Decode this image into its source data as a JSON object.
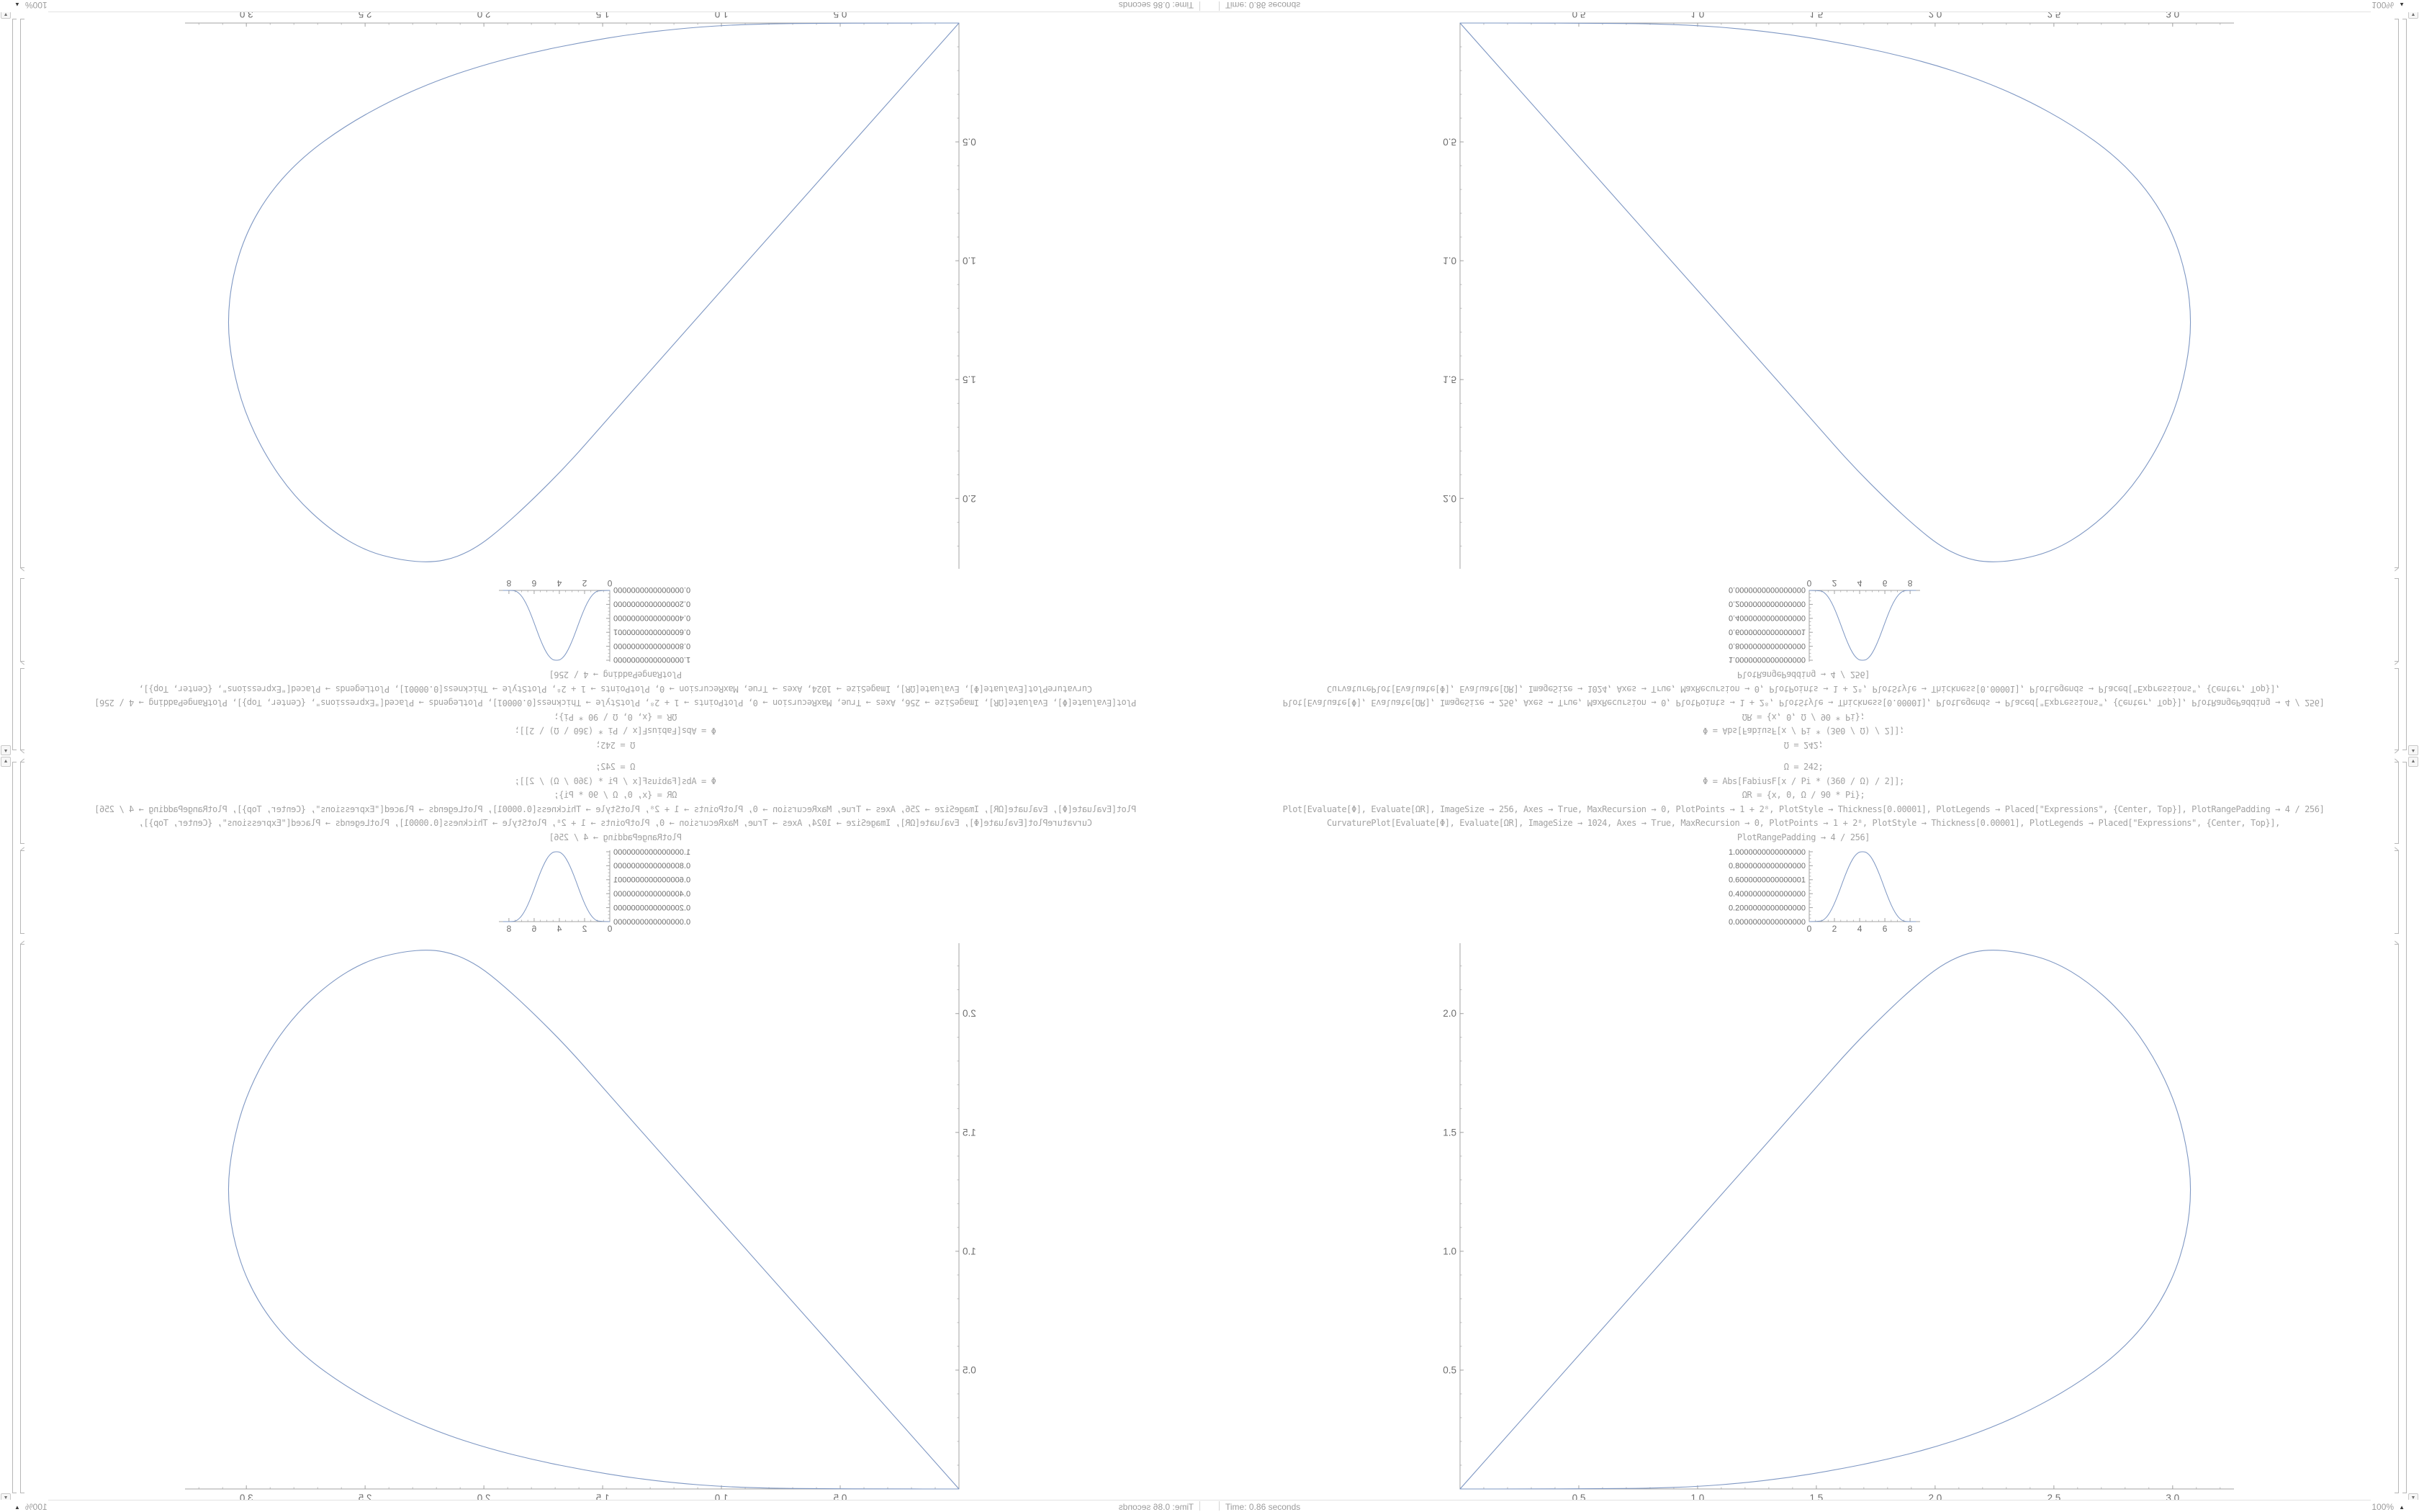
{
  "app": {
    "status": {
      "time": "Time: 0.86 seconds",
      "zoom_level": "100%"
    },
    "icons": {
      "scroll_up": "▲",
      "scroll_down": "▼",
      "zoom_menu": "▲"
    },
    "colors": {
      "curve": "#7e97c3",
      "axis": "#a3a3a3",
      "tick_label": "#6e6e6e",
      "code_text": "#a2a2a2",
      "bracket": "#b6b6b6"
    }
  },
  "code_cell": {
    "lines": [
      "Ω = 242;",
      "Φ = Abs[FabiusF[x / Pi * (360 / Ω) / 2]];",
      "ΩR = {x, 0, Ω / 90 * Pi};",
      "Plot[Evaluate[Φ], Evaluate[ΩR], ImageSize → 256, Axes → True, MaxRecursion → 0, PlotPoints → 1 + 2⁸, PlotStyle → Thickness[0.00001], PlotLegends → Placed[\"Expressions\", {Center, Top}], PlotRangePadding → 4 / 256]",
      "CurvaturePlot[Evaluate[Φ], Evaluate[ΩR], ImageSize → 1024, Axes → True, MaxRecursion → 0, PlotPoints → 1 + 2⁸, PlotStyle → Thickness[0.00001], PlotLegends → Placed[\"Expressions\", {Center, Top}],",
      "PlotRangePadding → 4 / 256]"
    ]
  },
  "chart_data": [
    {
      "type": "line",
      "name": "fabius-bump-plot",
      "title": "",
      "xlabel": "",
      "ylabel": "",
      "xlim": [
        0,
        8.45
      ],
      "ylim": [
        0,
        1.0
      ],
      "x_ticks": [
        0,
        2,
        4,
        6,
        8
      ],
      "x_tick_labels": [
        "0",
        "2",
        "4",
        "6",
        "8"
      ],
      "y_ticks": [
        0,
        0.2,
        0.4,
        0.6,
        0.8,
        1.0
      ],
      "y_tick_labels": [
        "0.0000000000000000",
        "0.2000000000000000",
        "0.4000000000000000",
        "0.6000000000000001",
        "0.8000000000000000",
        "1.0000000000000000"
      ],
      "x_minor_step": 0.5,
      "y_minor_step": 0.05,
      "grid": false,
      "legend": "none",
      "curve_color": "#7e97c3",
      "stroke_width": 1,
      "points": [
        [
          0,
          0
        ],
        [
          0.9,
          0.002
        ],
        [
          1.2,
          0.03
        ],
        [
          1.5,
          0.09
        ],
        [
          1.8,
          0.18
        ],
        [
          2.1,
          0.3
        ],
        [
          2.4,
          0.44
        ],
        [
          2.7,
          0.59
        ],
        [
          3.0,
          0.73
        ],
        [
          3.3,
          0.85
        ],
        [
          3.6,
          0.94
        ],
        [
          3.9,
          0.99
        ],
        [
          4.1,
          1.0
        ],
        [
          4.35,
          1.0
        ],
        [
          4.55,
          0.99
        ],
        [
          4.85,
          0.94
        ],
        [
          5.15,
          0.85
        ],
        [
          5.45,
          0.73
        ],
        [
          5.75,
          0.59
        ],
        [
          6.05,
          0.44
        ],
        [
          6.35,
          0.3
        ],
        [
          6.65,
          0.18
        ],
        [
          6.95,
          0.09
        ],
        [
          7.25,
          0.03
        ],
        [
          7.55,
          0.002
        ],
        [
          8.0,
          0
        ],
        [
          8.45,
          0
        ]
      ]
    },
    {
      "type": "line",
      "name": "curvature-teardrop-plot",
      "title": "",
      "xlabel": "",
      "ylabel": "",
      "xlim": [
        0,
        3.24
      ],
      "ylim": [
        0,
        2.29
      ],
      "x_ticks": [
        0.5,
        1.0,
        1.5,
        2.0,
        2.5,
        3.0
      ],
      "x_tick_labels": [
        "0.5",
        "1.0",
        "1.5",
        "2.0",
        "2.5",
        "3.0"
      ],
      "y_ticks": [
        0.5,
        1.0,
        1.5,
        2.0
      ],
      "y_tick_labels": [
        "0.5",
        "1.0",
        "1.5",
        "2.0"
      ],
      "x_minor_step": 0.1,
      "y_minor_step": 0.1,
      "grid": false,
      "legend": "none",
      "curve_color": "#7e97c3",
      "stroke_width": 1.1,
      "points": [
        [
          0,
          0
        ],
        [
          0.4,
          0.45
        ],
        [
          0.8,
          0.9
        ],
        [
          1.2,
          1.35
        ],
        [
          1.5,
          1.69
        ],
        [
          1.65,
          1.86
        ],
        [
          1.8,
          2.01
        ],
        [
          1.92,
          2.12
        ],
        [
          2.02,
          2.2
        ],
        [
          2.12,
          2.25
        ],
        [
          2.22,
          2.27
        ],
        [
          2.35,
          2.26
        ],
        [
          2.5,
          2.22
        ],
        [
          2.65,
          2.13
        ],
        [
          2.8,
          1.99
        ],
        [
          2.92,
          1.82
        ],
        [
          3.01,
          1.63
        ],
        [
          3.06,
          1.44
        ],
        [
          3.08,
          1.26
        ],
        [
          3.06,
          1.07
        ],
        [
          3.0,
          0.88
        ],
        [
          2.9,
          0.71
        ],
        [
          2.76,
          0.56
        ],
        [
          2.58,
          0.43
        ],
        [
          2.38,
          0.32
        ],
        [
          2.18,
          0.235
        ],
        [
          1.98,
          0.17
        ],
        [
          1.78,
          0.12
        ],
        [
          1.58,
          0.08
        ],
        [
          1.38,
          0.047
        ],
        [
          1.18,
          0.024
        ],
        [
          1.0,
          0.01
        ],
        [
          0.8,
          0.003
        ],
        [
          0.6,
          0.001
        ],
        [
          0.3,
          0
        ],
        [
          0,
          0
        ]
      ]
    }
  ]
}
